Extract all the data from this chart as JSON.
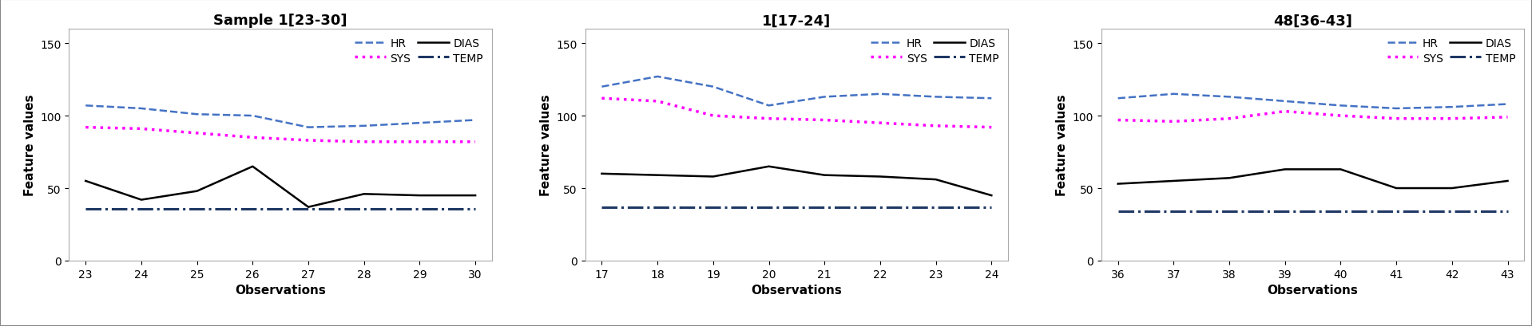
{
  "panels": [
    {
      "title": "Sample 1[23-30]",
      "x": [
        23,
        24,
        25,
        26,
        27,
        28,
        29,
        30
      ],
      "HR": [
        107,
        105,
        101,
        100,
        92,
        93,
        95,
        97
      ],
      "SYS": [
        92,
        91,
        88,
        85,
        83,
        82,
        82,
        82
      ],
      "DIAS": [
        55,
        42,
        48,
        65,
        37,
        46,
        45,
        45
      ],
      "TEMP": [
        36,
        36,
        36,
        36,
        36,
        36,
        36,
        36
      ]
    },
    {
      "title": "1[17-24]",
      "x": [
        17,
        18,
        19,
        20,
        21,
        22,
        23,
        24
      ],
      "HR": [
        120,
        127,
        120,
        107,
        113,
        115,
        113,
        112
      ],
      "SYS": [
        112,
        110,
        100,
        98,
        97,
        95,
        93,
        92
      ],
      "DIAS": [
        60,
        59,
        58,
        65,
        59,
        58,
        56,
        45
      ],
      "TEMP": [
        37,
        37,
        37,
        37,
        37,
        37,
        37,
        37
      ]
    },
    {
      "title": "48[36-43]",
      "x": [
        36,
        37,
        38,
        39,
        40,
        41,
        42,
        43
      ],
      "HR": [
        112,
        115,
        113,
        110,
        107,
        105,
        106,
        108
      ],
      "SYS": [
        97,
        96,
        98,
        103,
        100,
        98,
        98,
        99
      ],
      "DIAS": [
        53,
        55,
        57,
        63,
        63,
        50,
        50,
        55
      ],
      "TEMP": [
        34,
        34,
        34,
        34,
        34,
        34,
        34,
        34
      ]
    }
  ],
  "HR_color": "#4472C4",
  "SYS_color": "#FF00FF",
  "DIAS_color": "#000000",
  "TEMP_color": "#1F3864",
  "ylim": [
    0,
    160
  ],
  "yticks": [
    0,
    50,
    100,
    150
  ],
  "ylabel": "Feature values",
  "xlabel": "Observations",
  "title_fontsize": 13,
  "label_fontsize": 11,
  "tick_fontsize": 10,
  "legend_fontsize": 10,
  "background_color": "#ffffff",
  "border_color": "#aaaaaa"
}
